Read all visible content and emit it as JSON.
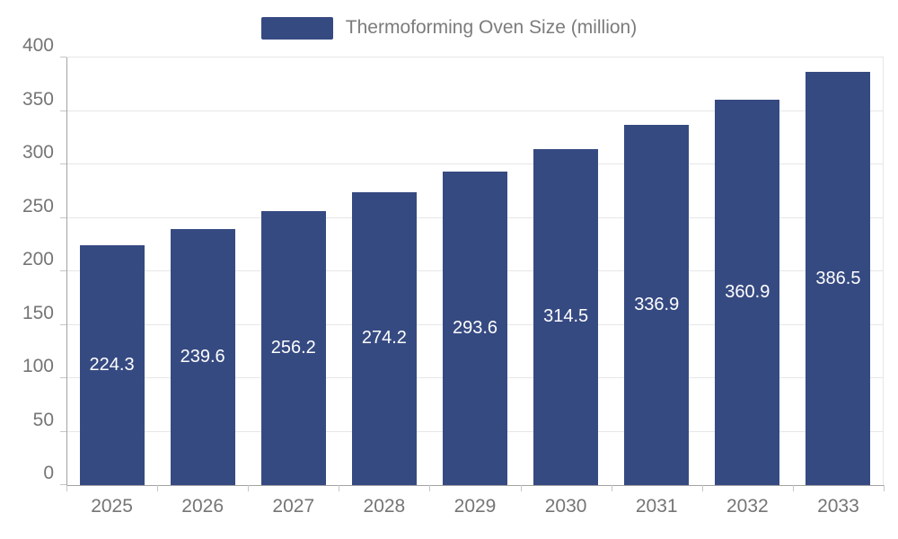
{
  "chart_data": {
    "type": "bar",
    "title": "Thermoforming Oven Size (million)",
    "series_name": "Thermoforming Oven Size (million)",
    "categories": [
      "2025",
      "2026",
      "2027",
      "2028",
      "2029",
      "2030",
      "2031",
      "2032",
      "2033"
    ],
    "values": [
      224.3,
      239.6,
      256.2,
      274.2,
      293.6,
      314.5,
      336.9,
      360.9,
      386.5
    ],
    "value_labels": [
      "224.3",
      "239.6",
      "256.2",
      "274.2",
      "293.6",
      "314.5",
      "336.9",
      "360.9",
      "386.5"
    ],
    "xlabel": "",
    "ylabel": "",
    "ylim": [
      0,
      400
    ],
    "yticks": [
      0,
      50,
      100,
      150,
      200,
      250,
      300,
      350,
      400
    ],
    "grid": true,
    "legend_position": "top-center",
    "bar_label_position": "center-inside"
  },
  "legend": {
    "label": "Thermoforming Oven Size (million)"
  },
  "colors": {
    "background": "#ffffff",
    "bar": "#364a82",
    "bar_label": "#ffffff",
    "grid": "#e6e6e6",
    "axis": "#a3a3a3",
    "tick": "#c6c6c6",
    "tick_label": "#757575",
    "legend_label": "#7c7c7c"
  }
}
